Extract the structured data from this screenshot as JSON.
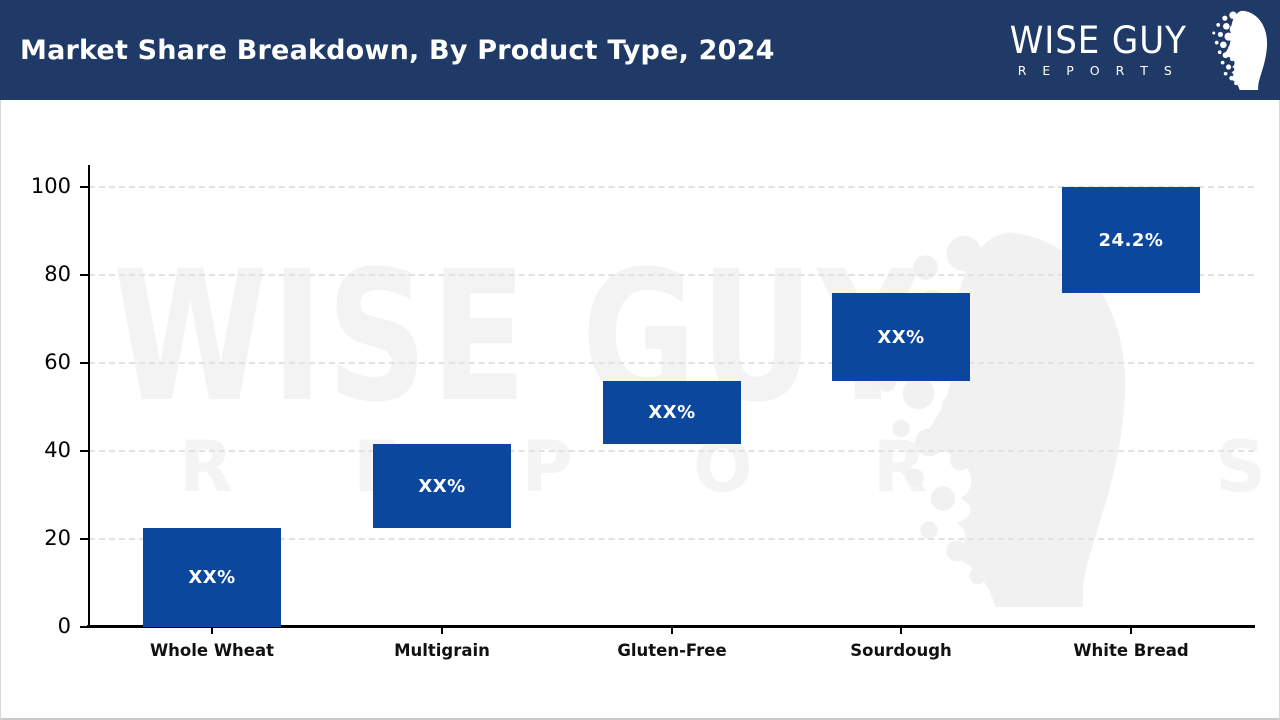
{
  "header": {
    "title": "Market Share Breakdown, By Product Type, 2024",
    "logo": {
      "name": "WISE GUY",
      "subtitle": "R E P O R T S"
    }
  },
  "watermark": {
    "line1": "WISE GUY",
    "line2": "R E P O R T S"
  },
  "chart_data": {
    "type": "bar",
    "subtype": "floating-waterfall-segments",
    "title": "Market Share Breakdown, By Product Type, 2024",
    "categories": [
      "Whole Wheat",
      "Multigrain",
      "Gluten-Free",
      "Sourdough",
      "White Bread"
    ],
    "segments": [
      {
        "category": "Whole Wheat",
        "start": 0,
        "end": 22.5,
        "label": "XX%"
      },
      {
        "category": "Multigrain",
        "start": 22.5,
        "end": 41.5,
        "label": "XX%"
      },
      {
        "category": "Gluten-Free",
        "start": 41.5,
        "end": 55.8,
        "label": "XX%"
      },
      {
        "category": "Sourdough",
        "start": 55.8,
        "end": 75.8,
        "label": "XX%"
      },
      {
        "category": "White Bread",
        "start": 75.8,
        "end": 100,
        "label": "24.2%"
      }
    ],
    "ylim": [
      0,
      105
    ],
    "yticks": [
      0,
      20,
      40,
      60,
      80,
      100
    ],
    "xlabel": "",
    "ylabel": "",
    "grid": "horizontal-dashed",
    "legend": "none",
    "bar_color": "#0b479d",
    "bar_label_color": "#ffffff"
  },
  "colors": {
    "header_bg": "#1f3a67",
    "bar": "#0b479d",
    "axis": "#000000",
    "gridline": "#e2e2e2",
    "watermark": "#f3f3f3"
  }
}
